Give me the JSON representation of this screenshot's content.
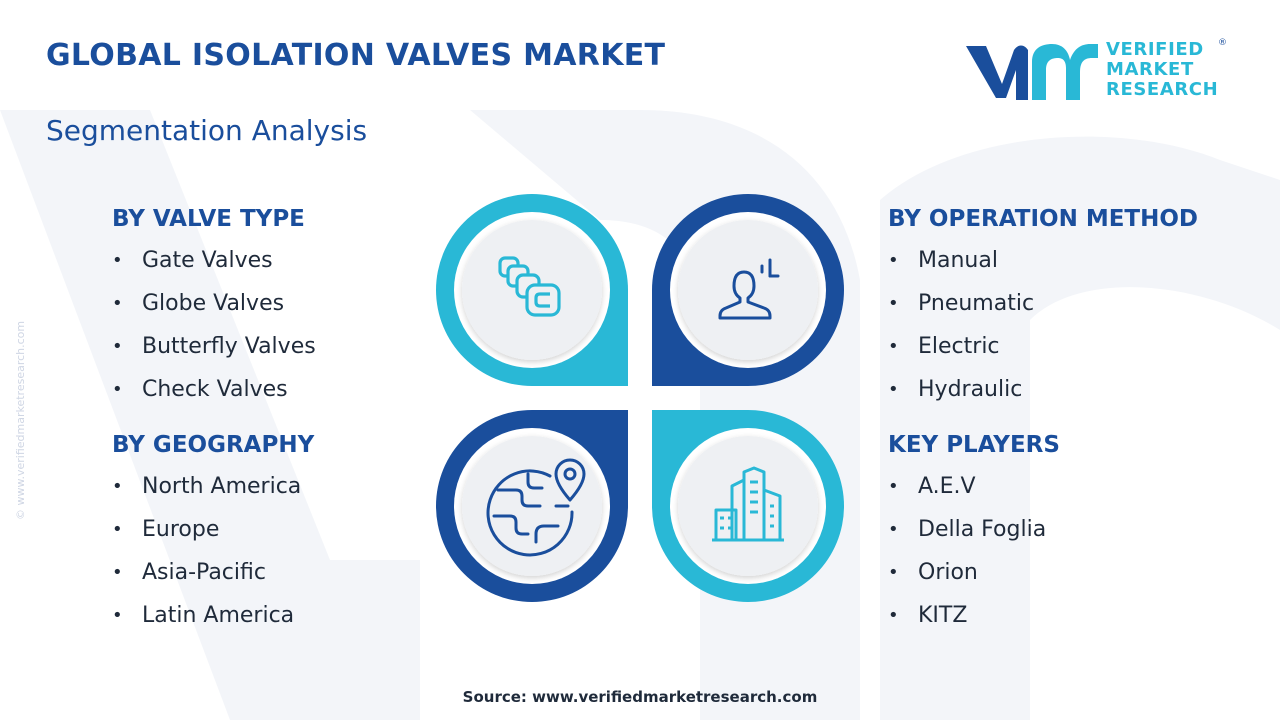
{
  "header": {
    "title": "GLOBAL ISOLATION VALVES MARKET",
    "subtitle": "Segmentation Analysis"
  },
  "logo": {
    "line1": "VERIFIED",
    "line2": "MARKET",
    "line3": "RESEARCH",
    "registered": "®"
  },
  "watermark_text": "© www.verifiedmarketresearch.com",
  "segments": {
    "valve_type": {
      "heading": "BY VALVE TYPE",
      "items": [
        "Gate Valves",
        "Globe Valves",
        "Butterfly Valves",
        "Check Valves"
      ]
    },
    "geography": {
      "heading": "BY GEOGRAPHY",
      "items": [
        "North America",
        "Europe",
        "Asia-Pacific",
        "Latin America"
      ]
    },
    "operation_method": {
      "heading": "BY OPERATION METHOD",
      "items": [
        "Manual",
        "Pneumatic",
        "Electric",
        "Hydraulic"
      ]
    },
    "key_players": {
      "heading": "KEY PLAYERS",
      "items": [
        "A.E.V",
        "Della Foglia",
        "Orion",
        "KITZ"
      ]
    }
  },
  "icons": {
    "top_left": "valve-blocks-icon",
    "top_right": "person-operator-icon",
    "bottom_left": "globe-location-icon",
    "bottom_right": "buildings-icon"
  },
  "colors": {
    "primary_blue": "#1a4e9c",
    "accent_cyan": "#29b8d6",
    "circle_fill": "#eef0f3"
  },
  "footer": {
    "source": "Source: www.verifiedmarketresearch.com"
  }
}
